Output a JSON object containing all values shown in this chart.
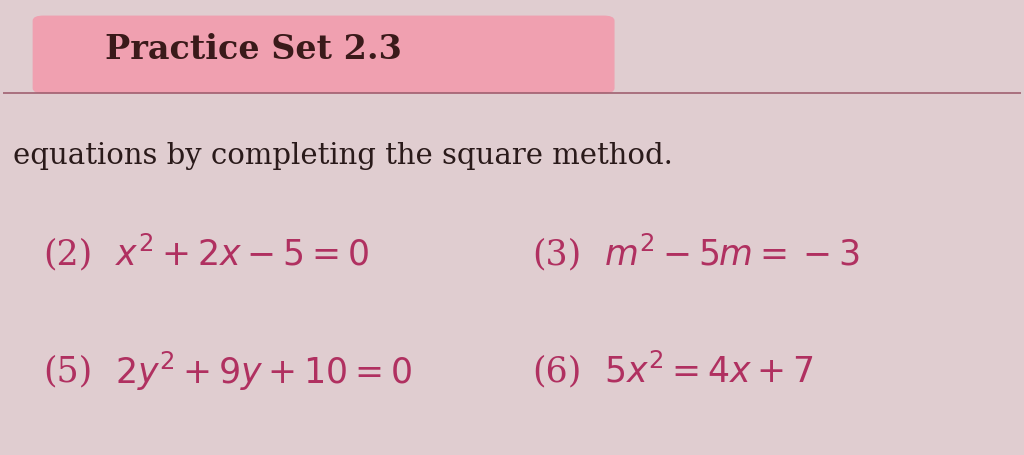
{
  "title": "Practice Set 2.3",
  "title_bg_color": "#f0a0b0",
  "title_font_color": "#3a1a1a",
  "body_bg_color": "#e0cdd0",
  "equation_color": "#b03060",
  "text_color": "#2a1a1a",
  "subtitle": "equations by completing the square method.",
  "divider_color": "#a06070",
  "equations": [
    {
      "label": "(2)",
      "eq": "$x^2 + 2x - 5 = 0$"
    },
    {
      "label": "(3)",
      "eq": "$m^2 - 5m = -3$"
    },
    {
      "label": "(5)",
      "eq": "$2y^2 + 9y + 10 = 0$"
    },
    {
      "label": "(6)",
      "eq": "$5x^2 = 4x + 7$"
    }
  ],
  "figsize": [
    10.24,
    4.55
  ],
  "dpi": 100
}
